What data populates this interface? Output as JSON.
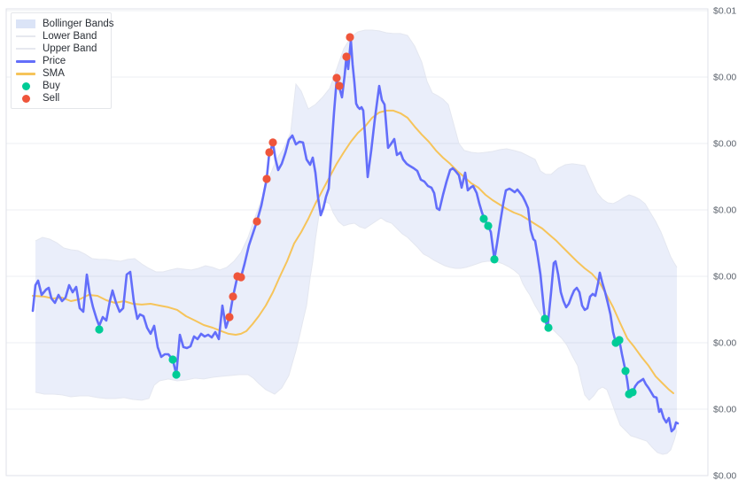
{
  "legend": {
    "items": [
      {
        "label": "Bollinger Bands",
        "swatch": "area",
        "color": "#dbe4f7"
      },
      {
        "label": "Lower Band",
        "swatch": "line-thin",
        "color": "#e6e8ef"
      },
      {
        "label": "Upper Band",
        "swatch": "line-thin",
        "color": "#e6e8ef"
      },
      {
        "label": "Price",
        "swatch": "line",
        "color": "#636EFA"
      },
      {
        "label": "SMA",
        "swatch": "line",
        "color": "#F6C45A"
      },
      {
        "label": "Buy",
        "swatch": "dot",
        "color": "#00CC96"
      },
      {
        "label": "Sell",
        "swatch": "dot",
        "color": "#EF553B"
      }
    ]
  },
  "colors": {
    "price": "#636EFA",
    "sma": "#F6C45A",
    "buy": "#00CC96",
    "sell": "#EF553B",
    "band_fill": "rgba(86,119,214,0.12)",
    "band_edge": "#e4e7f0",
    "gridline": "#edeff3",
    "plot_border": "#dfe2e8",
    "tick_text": "#5d646e"
  },
  "chart_data": {
    "type": "line",
    "title": "",
    "xlabel": "",
    "ylabel": "",
    "x_unit": "time_index",
    "y_unit": "micro_dollars",
    "xlim": [
      -30,
      762
    ],
    "ylim": [
      1500,
      5013
    ],
    "grid": true,
    "legend_position": "top-left",
    "y_ticks": {
      "values": [
        5000,
        4500,
        4000,
        3500,
        3000,
        2500,
        2000,
        1500
      ],
      "labels": [
        "$0.01",
        "$0.00",
        "$0.00",
        "$0.00",
        "$0.00",
        "$0.00",
        "$0.00",
        "$0.00"
      ]
    },
    "series": [
      {
        "name": "Upper Band",
        "type": "line",
        "x": [
          3,
          11,
          19,
          27,
          35,
          43,
          51,
          59,
          67,
          75,
          83,
          91,
          99,
          107,
          115,
          123,
          131,
          139,
          147,
          155,
          163,
          171,
          179,
          187,
          195,
          203,
          211,
          219,
          227,
          235,
          243,
          251,
          259,
          267,
          275,
          283,
          291,
          297,
          303,
          311,
          319,
          327,
          335,
          343,
          351,
          359,
          367,
          375,
          383,
          391,
          399,
          407,
          415,
          423,
          431,
          439,
          445,
          451,
          457,
          463,
          469,
          475,
          481,
          487,
          495,
          503,
          511,
          519,
          527,
          535,
          543,
          551,
          559,
          567,
          573,
          579,
          585,
          593,
          601,
          609,
          617,
          623,
          631,
          637,
          643,
          649,
          655,
          661,
          667,
          673,
          679,
          685,
          691,
          697,
          703,
          709,
          715,
          720,
          724,
          727
        ],
        "y": [
          3267,
          3293,
          3280,
          3253,
          3213,
          3200,
          3193,
          3167,
          3133,
          3127,
          3127,
          3120,
          3113,
          3127,
          3133,
          3093,
          3060,
          3033,
          3033,
          3047,
          3060,
          3053,
          3047,
          3060,
          3080,
          3067,
          3047,
          3067,
          3113,
          3180,
          3293,
          3447,
          3593,
          3747,
          3880,
          3960,
          4080,
          4447,
          4393,
          4260,
          4293,
          4347,
          4413,
          4560,
          4713,
          4800,
          4840,
          4853,
          4853,
          4847,
          4833,
          4827,
          4827,
          4813,
          4733,
          4613,
          4467,
          4380,
          4360,
          4333,
          4293,
          4147,
          4000,
          3947,
          3933,
          3927,
          3933,
          3940,
          3953,
          3960,
          3947,
          3933,
          3907,
          3880,
          3793,
          3767,
          3767,
          3813,
          3840,
          3847,
          3840,
          3833,
          3713,
          3627,
          3580,
          3553,
          3547,
          3567,
          3593,
          3613,
          3600,
          3580,
          3547,
          3480,
          3413,
          3333,
          3233,
          3147,
          3100,
          3067
        ]
      },
      {
        "name": "Lower Band",
        "type": "line",
        "x": [
          3,
          13,
          23,
          33,
          43,
          53,
          63,
          73,
          83,
          93,
          103,
          113,
          123,
          131,
          137,
          143,
          153,
          163,
          173,
          183,
          193,
          203,
          213,
          223,
          233,
          243,
          249,
          255,
          263,
          273,
          281,
          289,
          293,
          297,
          301,
          305,
          309,
          313,
          316,
          319,
          323,
          327,
          331,
          335,
          339,
          345,
          351,
          357,
          363,
          369,
          375,
          381,
          387,
          393,
          399,
          405,
          411,
          417,
          423,
          429,
          435,
          441,
          447,
          453,
          459,
          465,
          471,
          477,
          483,
          489,
          495,
          501,
          507,
          513,
          519,
          525,
          531,
          537,
          543,
          549,
          553,
          557,
          561,
          567,
          573,
          579,
          585,
          591,
          597,
          603,
          609,
          615,
          619,
          623,
          628,
          633,
          638,
          643,
          648,
          653,
          658,
          663,
          669,
          675,
          681,
          687,
          693,
          699,
          705,
          711,
          716,
          720,
          724,
          727
        ],
        "y": [
          2127,
          2113,
          2113,
          2107,
          2093,
          2100,
          2100,
          2087,
          2080,
          2080,
          2087,
          2073,
          2067,
          2080,
          2180,
          2213,
          2227,
          2213,
          2220,
          2233,
          2227,
          2240,
          2247,
          2253,
          2260,
          2260,
          2233,
          2193,
          2147,
          2113,
          2160,
          2253,
          2347,
          2440,
          2547,
          2667,
          2780,
          2987,
          3113,
          3280,
          3460,
          3527,
          3560,
          3547,
          3480,
          3413,
          3380,
          3393,
          3400,
          3373,
          3360,
          3387,
          3413,
          3440,
          3413,
          3400,
          3360,
          3320,
          3293,
          3253,
          3213,
          3167,
          3147,
          3120,
          3100,
          3080,
          3067,
          3060,
          3060,
          3067,
          3080,
          3093,
          3107,
          3113,
          3113,
          3107,
          3093,
          3073,
          3047,
          3013,
          2947,
          2900,
          2860,
          2780,
          2713,
          2660,
          2613,
          2573,
          2533,
          2480,
          2400,
          2327,
          2213,
          2107,
          2067,
          2100,
          2147,
          2167,
          2147,
          2060,
          1967,
          1880,
          1840,
          1800,
          1787,
          1773,
          1760,
          1713,
          1673,
          1660,
          1667,
          1693,
          1767,
          1840
        ]
      },
      {
        "name": "Bollinger Bands",
        "type": "fill_between",
        "upper_ref": "Upper Band",
        "lower_ref": "Lower Band"
      },
      {
        "name": "SMA",
        "type": "line",
        "x": [
          0,
          13,
          23,
          33,
          43,
          53,
          63,
          73,
          83,
          93,
          103,
          113,
          123,
          133,
          143,
          153,
          163,
          173,
          183,
          193,
          203,
          213,
          221,
          229,
          235,
          241,
          248,
          255,
          263,
          271,
          279,
          287,
          295,
          303,
          311,
          319,
          327,
          335,
          343,
          351,
          359,
          367,
          375,
          383,
          391,
          399,
          407,
          415,
          423,
          431,
          439,
          447,
          455,
          463,
          471,
          479,
          487,
          495,
          503,
          511,
          519,
          527,
          535,
          543,
          551,
          559,
          567,
          575,
          583,
          591,
          599,
          607,
          615,
          623,
          631,
          639,
          647,
          655,
          663,
          671,
          679,
          687,
          695,
          703,
          711,
          718,
          723
        ],
        "y": [
          2853,
          2847,
          2833,
          2840,
          2813,
          2827,
          2860,
          2853,
          2820,
          2800,
          2813,
          2793,
          2787,
          2793,
          2780,
          2767,
          2747,
          2700,
          2667,
          2633,
          2613,
          2587,
          2567,
          2560,
          2567,
          2587,
          2640,
          2700,
          2780,
          2880,
          3000,
          3113,
          3247,
          3333,
          3433,
          3547,
          3647,
          3747,
          3847,
          3933,
          4013,
          4080,
          4127,
          4193,
          4233,
          4247,
          4247,
          4227,
          4193,
          4127,
          4067,
          4013,
          3947,
          3893,
          3847,
          3793,
          3747,
          3700,
          3667,
          3613,
          3573,
          3540,
          3507,
          3480,
          3460,
          3427,
          3393,
          3360,
          3313,
          3267,
          3213,
          3160,
          3107,
          3060,
          3020,
          2960,
          2867,
          2767,
          2647,
          2533,
          2467,
          2393,
          2327,
          2247,
          2193,
          2147,
          2120
        ]
      },
      {
        "name": "Price",
        "type": "line",
        "x": [
          0,
          3,
          6,
          10,
          15,
          18,
          21,
          25,
          29,
          33,
          37,
          41,
          45,
          49,
          53,
          57,
          61,
          64,
          68,
          72,
          75,
          79,
          83,
          87,
          90,
          94,
          98,
          102,
          106,
          110,
          114,
          118,
          121,
          125,
          129,
          133,
          137,
          141,
          145,
          149,
          153,
          158,
          162,
          166,
          170,
          174,
          178,
          182,
          186,
          190,
          194,
          198,
          202,
          206,
          210,
          214,
          218,
          222,
          226,
          231,
          235,
          239,
          244,
          249,
          253,
          258,
          264,
          267,
          269,
          271,
          274,
          277,
          281,
          285,
          289,
          293,
          297,
          301,
          305,
          309,
          313,
          316,
          319,
          322,
          325,
          328,
          331,
          334,
          337,
          340,
          343,
          346,
          349,
          352,
          354,
          356,
          359,
          361,
          363,
          365,
          367,
          369,
          371,
          373,
          375,
          378,
          382,
          386,
          391,
          394,
          397,
          401,
          404,
          408,
          411,
          415,
          418,
          422,
          425,
          430,
          434,
          438,
          442,
          446,
          450,
          453,
          456,
          459,
          463,
          467,
          471,
          474,
          477,
          481,
          484,
          488,
          491,
          494,
          497,
          501,
          504,
          507,
          510,
          514,
          517,
          521,
          524,
          527,
          531,
          534,
          538,
          541,
          544,
          547,
          550,
          553,
          556,
          559,
          562,
          565,
          567,
          570,
          573,
          576,
          578,
          581,
          585,
          588,
          590,
          593,
          596,
          599,
          602,
          605,
          608,
          611,
          614,
          617,
          620,
          623,
          626,
          629,
          632,
          635,
          638,
          640,
          643,
          646,
          649,
          652,
          655,
          658,
          662,
          665,
          669,
          671,
          673,
          677,
          680,
          683,
          686,
          689,
          692,
          695,
          698,
          701,
          704,
          707,
          709,
          712,
          715,
          718,
          721,
          724,
          726,
          728
        ],
        "y": [
          2740,
          2933,
          2967,
          2860,
          2900,
          2913,
          2833,
          2800,
          2860,
          2813,
          2840,
          2933,
          2880,
          2920,
          2760,
          2733,
          3013,
          2880,
          2767,
          2680,
          2627,
          2693,
          2667,
          2813,
          2893,
          2800,
          2733,
          2760,
          3013,
          3033,
          2813,
          2680,
          2713,
          2700,
          2613,
          2567,
          2627,
          2467,
          2393,
          2413,
          2413,
          2373,
          2260,
          2560,
          2467,
          2460,
          2473,
          2547,
          2527,
          2567,
          2547,
          2560,
          2540,
          2580,
          2527,
          2780,
          2613,
          2693,
          2847,
          3000,
          2993,
          3093,
          3233,
          3333,
          3413,
          3533,
          3733,
          3933,
          3960,
          4007,
          3880,
          3800,
          3847,
          3927,
          4027,
          4060,
          3993,
          4013,
          4007,
          3880,
          3840,
          3893,
          3780,
          3593,
          3460,
          3513,
          3600,
          3660,
          3947,
          4233,
          4480,
          4420,
          4347,
          4513,
          4653,
          4560,
          4780,
          4593,
          4460,
          4300,
          4273,
          4260,
          4273,
          4247,
          4060,
          3747,
          3947,
          4180,
          4433,
          4327,
          4293,
          3967,
          3993,
          4033,
          3913,
          3933,
          3880,
          3847,
          3833,
          3813,
          3793,
          3727,
          3713,
          3680,
          3667,
          3627,
          3513,
          3500,
          3613,
          3713,
          3800,
          3813,
          3793,
          3760,
          3667,
          3780,
          3647,
          3667,
          3680,
          3627,
          3547,
          3480,
          3427,
          3380,
          3333,
          3127,
          3247,
          3380,
          3547,
          3647,
          3660,
          3647,
          3633,
          3653,
          3627,
          3600,
          3560,
          3513,
          3347,
          3280,
          3267,
          3147,
          3013,
          2813,
          2680,
          2613,
          2880,
          3100,
          3113,
          3013,
          2880,
          2813,
          2767,
          2793,
          2847,
          2893,
          2913,
          2880,
          2780,
          2747,
          2760,
          2847,
          2867,
          2853,
          2947,
          3027,
          2947,
          2880,
          2800,
          2713,
          2580,
          2500,
          2520,
          2413,
          2287,
          2213,
          2113,
          2127,
          2173,
          2200,
          2213,
          2227,
          2187,
          2160,
          2127,
          2093,
          2087,
          1980,
          2000,
          1933,
          1900,
          1933,
          1833,
          1853,
          1900,
          1893
        ]
      },
      {
        "name": "Buy",
        "type": "scatter",
        "x": [
          75,
          158,
          162,
          509,
          514,
          521,
          578,
          582,
          658,
          662,
          669,
          673,
          677
        ],
        "y": [
          2600,
          2373,
          2260,
          3433,
          3380,
          3127,
          2680,
          2613,
          2500,
          2520,
          2287,
          2113,
          2127
        ]
      },
      {
        "name": "Sell",
        "type": "scatter",
        "x": [
          222,
          226,
          231,
          235,
          253,
          264,
          267,
          271,
          343,
          346,
          354,
          358
        ],
        "y": [
          2693,
          2847,
          3000,
          2993,
          3413,
          3733,
          3933,
          4007,
          4493,
          4433,
          4653,
          4800
        ]
      }
    ]
  }
}
